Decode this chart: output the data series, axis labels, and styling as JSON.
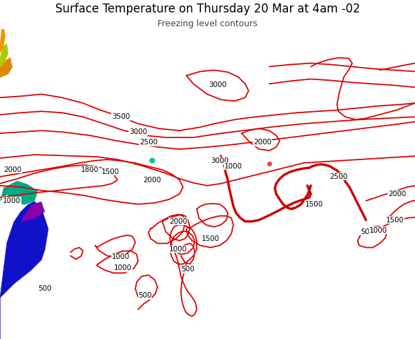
{
  "title": "Surface Temperature on Thursday 20 Mar at 4am -02",
  "subtitle": "Freezing level contours",
  "bg_color": "#cdd5e8",
  "header_bg": "#ffffff",
  "contour_color": "#dd0000",
  "contour_thick_color": "#cc0000",
  "grid_color": "#b8c4da",
  "title_fontsize": 12,
  "subtitle_fontsize": 9,
  "fig_width": 6.01,
  "fig_height": 4.91,
  "dpi": 100,
  "lw_thin": 1.3,
  "lw_thick": 2.5,
  "label_fontsize": 7.5
}
